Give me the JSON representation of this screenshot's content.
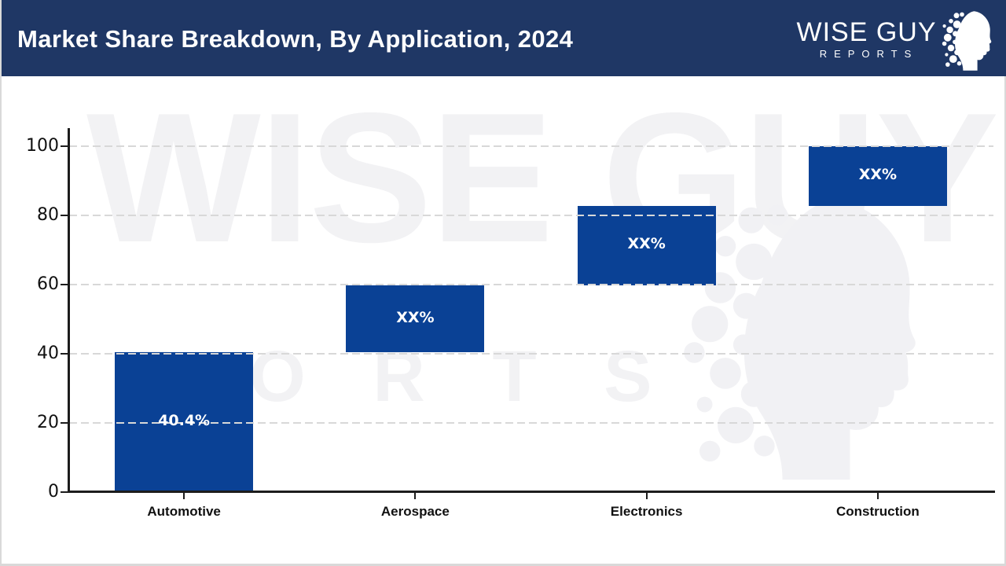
{
  "header": {
    "title": "Market Share Breakdown, By Application, 2024",
    "logo": {
      "line1": "WISE GUY",
      "line2": "REPORTS"
    }
  },
  "watermark": {
    "line1": "WISE GUY",
    "line2": "P O R T S"
  },
  "colors": {
    "header_bg": "#1f3765",
    "bar": "#0a4195",
    "bar_label": "#ffffff",
    "gridline": "#d8d8d8",
    "axis": "#1c1c1c",
    "watermark": "#f2f2f4"
  },
  "chart_data": {
    "type": "bar",
    "subtype": "waterfall",
    "title": "Market Share Breakdown, By Application, 2024",
    "categories": [
      "Automotive",
      "Aerospace",
      "Electronics",
      "Construction"
    ],
    "segments": [
      {
        "category": "Automotive",
        "label": "40.4%",
        "start": 0,
        "end": 40.4
      },
      {
        "category": "Aerospace",
        "label": "XX%",
        "start": 40.4,
        "end": 59.8
      },
      {
        "category": "Electronics",
        "label": "XX%",
        "start": 59.8,
        "end": 82.8
      },
      {
        "category": "Construction",
        "label": "XX%",
        "start": 82.8,
        "end": 100
      }
    ],
    "xlabel": "",
    "ylabel": "",
    "ylim": [
      0,
      100
    ],
    "y_ticks": [
      0,
      20,
      40,
      60,
      80,
      100
    ],
    "grid": "horizontal-dashed",
    "legend": "none"
  }
}
